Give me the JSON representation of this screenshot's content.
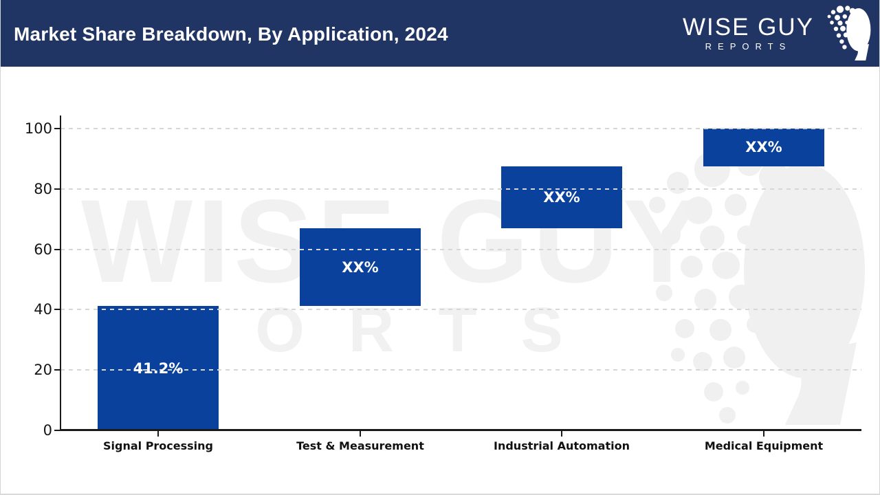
{
  "header": {
    "title": "Market Share Breakdown, By Application, 2024",
    "logo": {
      "line1": "WISE GUY",
      "line2": "REPORTS"
    },
    "bg_color": "#213564"
  },
  "watermark": {
    "line1": "WISE GUY",
    "line2": "PORTS"
  },
  "chart_data": {
    "type": "bar",
    "variant": "waterfall",
    "title": "Market Share Breakdown, By Application, 2024",
    "categories": [
      "Signal Processing",
      "Test & Measurement",
      "Industrial Automation",
      "Medical Equipment"
    ],
    "series": [
      {
        "name": "Market Share",
        "segments": [
          {
            "category": "Signal Processing",
            "start": 0,
            "end": 41.2,
            "value": 41.2,
            "label": "41.2%"
          },
          {
            "category": "Test & Measurement",
            "start": 41.2,
            "end": 67.0,
            "value": 25.8,
            "label": "XX%"
          },
          {
            "category": "Industrial Automation",
            "start": 67.0,
            "end": 87.5,
            "value": 20.5,
            "label": "XX%"
          },
          {
            "category": "Medical Equipment",
            "start": 87.5,
            "end": 100,
            "value": 12.5,
            "label": "XX%"
          }
        ]
      }
    ],
    "xlabel": "",
    "ylabel": "",
    "ylim": [
      0,
      100
    ],
    "yticks": [
      0,
      20,
      40,
      60,
      80,
      100
    ],
    "grid": true,
    "grid_style": "dashed",
    "legend": "none",
    "bar_color": "#0a419c",
    "label_color": "#ffffff"
  }
}
